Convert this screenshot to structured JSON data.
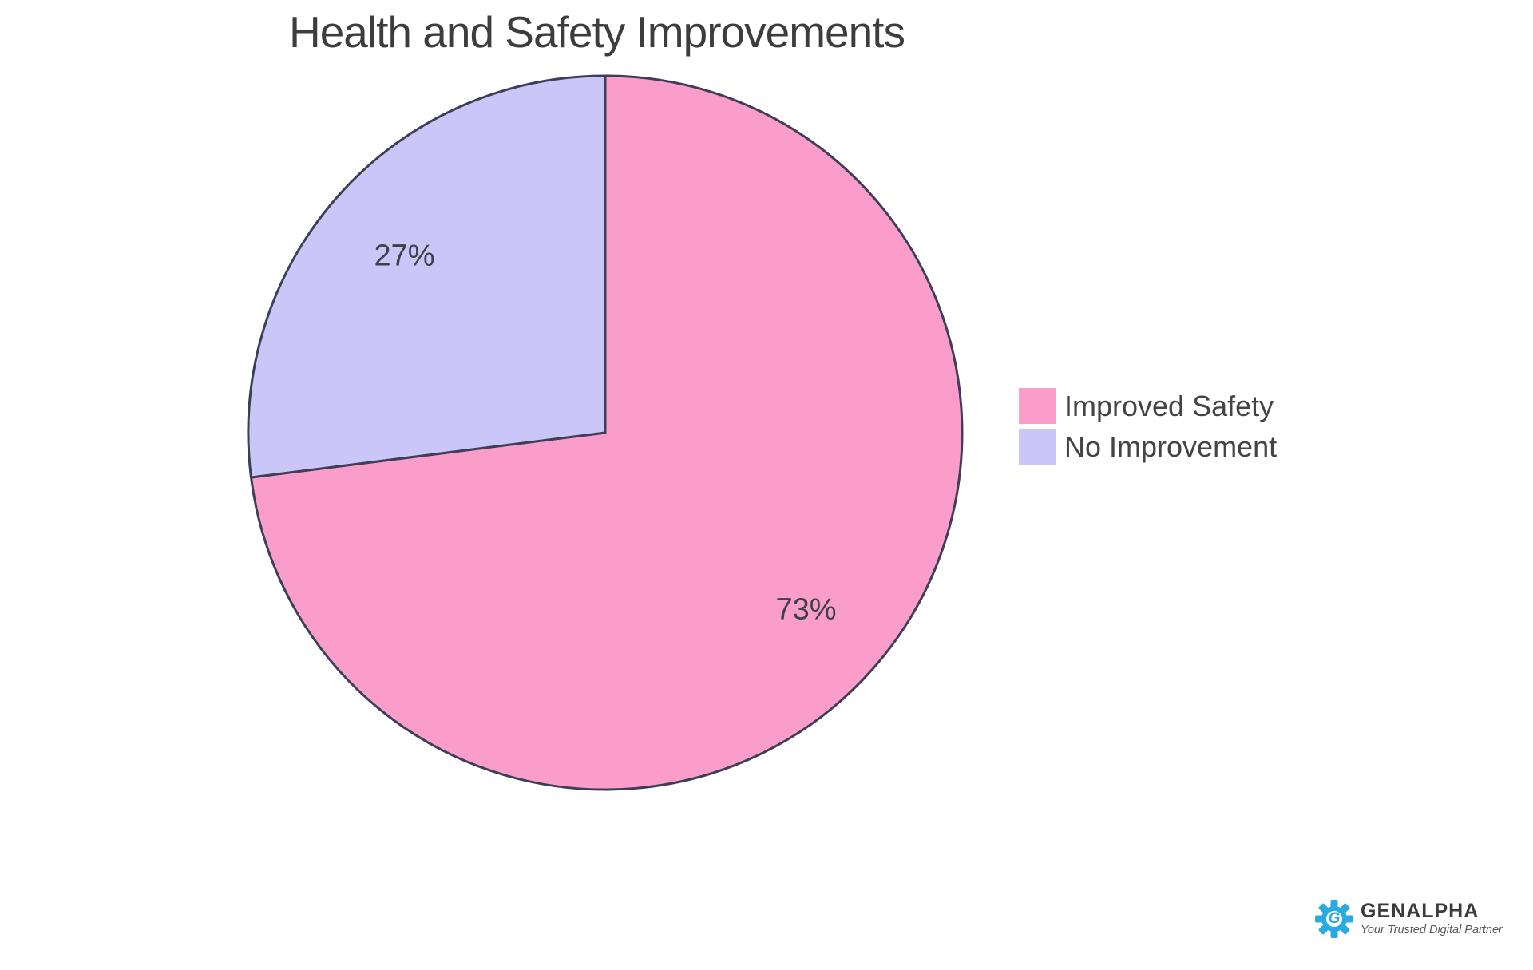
{
  "page": {
    "background": "#FFFFFF"
  },
  "chart_data": {
    "type": "pie",
    "title": "Health and Safety Improvements",
    "labels": [
      "Improved Safety",
      "No Improvement"
    ],
    "values": [
      73,
      27
    ],
    "value_labels": [
      "73%",
      "27%"
    ],
    "colors": [
      "#FA9DCB",
      "#CAC6F7"
    ],
    "slice_stroke_color": "#3D3F58",
    "slice_stroke_width": 3,
    "label_color": "#404048",
    "start_angle": "12 o'clock",
    "direction": "clockwise",
    "legend_position": "right",
    "grid": "off"
  },
  "branding": {
    "name": "GENALPHA",
    "tagline": "Your Trusted Digital Partner",
    "logo_icon": "gear-with-g-icon",
    "logo_color": "#29ABE2",
    "name_color": "#3B3B3B",
    "tagline_color": "#55575B"
  }
}
